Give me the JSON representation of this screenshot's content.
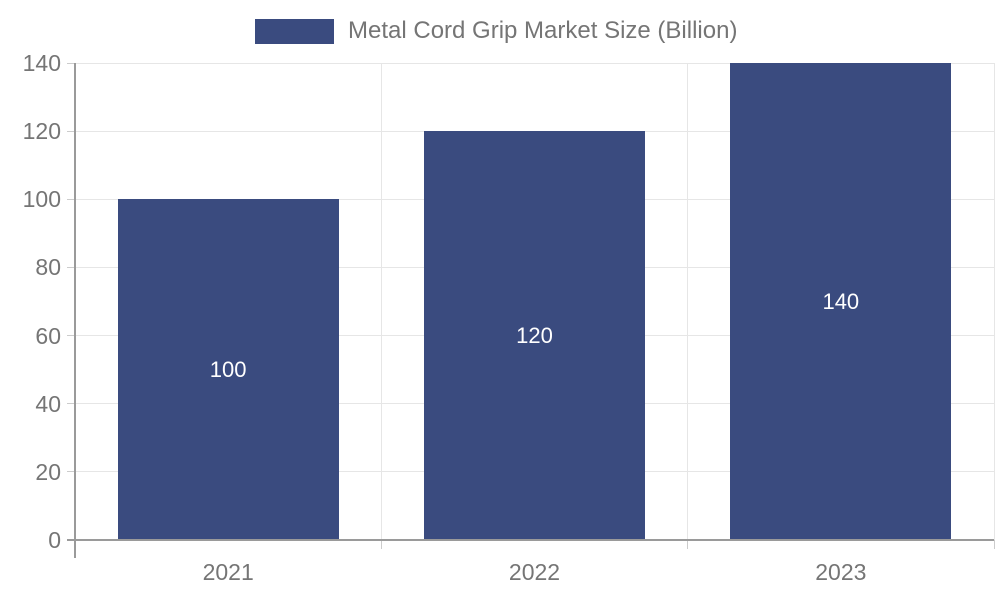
{
  "chart_data": {
    "type": "bar",
    "title": "Metal Cord Grip Market Size (Billion)",
    "legend_entries": [
      "Metal Cord Grip Market Size (Billion)"
    ],
    "legend_position": "top-center",
    "categories": [
      "2021",
      "2022",
      "2023"
    ],
    "series": [
      {
        "name": "Metal Cord Grip Market Size (Billion)",
        "values": [
          100,
          120,
          140
        ]
      }
    ],
    "data_labels": [
      "100",
      "120",
      "140"
    ],
    "xlabel": "",
    "ylabel": "",
    "ylim": [
      0,
      140
    ],
    "yticks": [
      0,
      20,
      40,
      60,
      80,
      100,
      120,
      140
    ],
    "grid": true
  },
  "colors": {
    "bar": "#3a4b7f",
    "grid": "#e6e6e6",
    "axis_line": "#9a9a9a",
    "tick_mark": "#cccccc",
    "axis_text": "#757575",
    "legend_text": "#757575",
    "data_label_text": "#ffffff",
    "background": "#ffffff"
  }
}
